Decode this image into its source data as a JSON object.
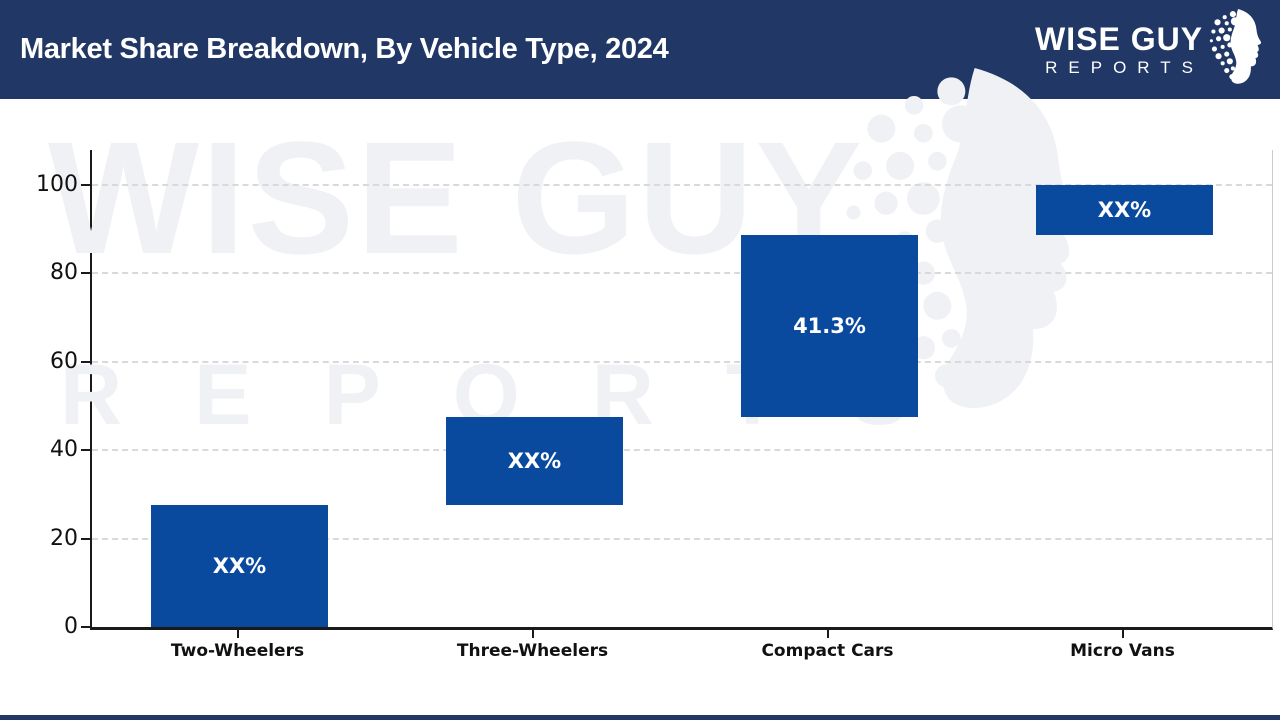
{
  "header": {
    "title": "Market Share Breakdown, By Vehicle Type, 2024",
    "brand": {
      "line1": "WISE GUY",
      "line2": "REPORTS"
    }
  },
  "watermark": {
    "line1": "WISE GUY",
    "line2": "REPORTS"
  },
  "chart_data": {
    "type": "bar",
    "subtype": "floating_stacked_segments",
    "title": "Market Share Breakdown, By Vehicle Type, 2024",
    "categories": [
      "Two-Wheelers",
      "Three-Wheelers",
      "Compact Cars",
      "Micro Vans"
    ],
    "segments": [
      {
        "category": "Two-Wheelers",
        "start": 0,
        "end": 27.7,
        "label": "XX%"
      },
      {
        "category": "Three-Wheelers",
        "start": 27.7,
        "end": 47.5,
        "label": "XX%"
      },
      {
        "category": "Compact Cars",
        "start": 47.5,
        "end": 88.8,
        "label": "41.3%"
      },
      {
        "category": "Micro Vans",
        "start": 88.8,
        "end": 100,
        "label": "XX%"
      }
    ],
    "xlabel": "",
    "ylabel": "",
    "ylim": [
      0,
      100
    ],
    "yticks": [
      0,
      20,
      40,
      60,
      80,
      100
    ],
    "grid": "horizontal-dashed",
    "legend": "none",
    "colors": {
      "bar": "#0a4a9e",
      "bar_label": "#ffffff",
      "grid": "#d9d9d9",
      "axis": "#1a1a1a",
      "tick_label": "#111111",
      "header_bg": "#213765",
      "footer_bg": "#213765",
      "watermark": "#f0f1f4",
      "page_bg": "#ffffff"
    }
  }
}
